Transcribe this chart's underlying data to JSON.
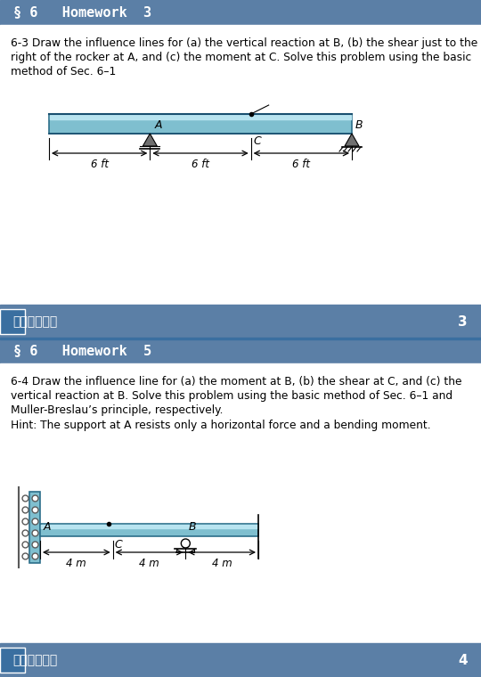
{
  "bg_color": "#ffffff",
  "header1_bg": "#5b7fa6",
  "header1_text": "§ 6   Homework  3",
  "header1_text_color": "#ffffff",
  "header2_bg": "#5b7fa6",
  "header2_text": "§ 6   Homework  5",
  "header2_text_color": "#ffffff",
  "footer_bg": "#5b7fa6",
  "footer_text_color": "#ffffff",
  "footer_logo_color": "#ffffff",
  "page3_num": "3",
  "page4_num": "4",
  "slide1_text_line1": "6-3 Draw the influence lines for (a) the vertical reaction at B, (b) the shear just to the",
  "slide1_text_line2": "right of the rocker at A, and (c) the moment at C. Solve this problem using the basic",
  "slide1_text_line3": "method of Sec. 6–1",
  "slide2_text_line1": "6-4 Draw the influence line for (a) the moment at B, (b) the shear at C, and (c) the",
  "slide2_text_line2": "vertical reaction at B. Solve this problem using the basic method of Sec. 6–1 and",
  "slide2_text_line3": "Muller-Breslau’s principle, respectively.",
  "slide2_text_line4": "Hint: The support at A resists only a horizontal force and a bending moment.",
  "beam1_color": "#7fbfcf",
  "beam1_top_color": "#aad8e6",
  "beam1_border_color": "#2c6e8a",
  "beam2_color": "#7fbfcf",
  "beam2_border_color": "#2c6e8a",
  "dim_color": "#000000",
  "label_color": "#000000",
  "support_color": "#808080",
  "divider_color": "#3a6fa0"
}
